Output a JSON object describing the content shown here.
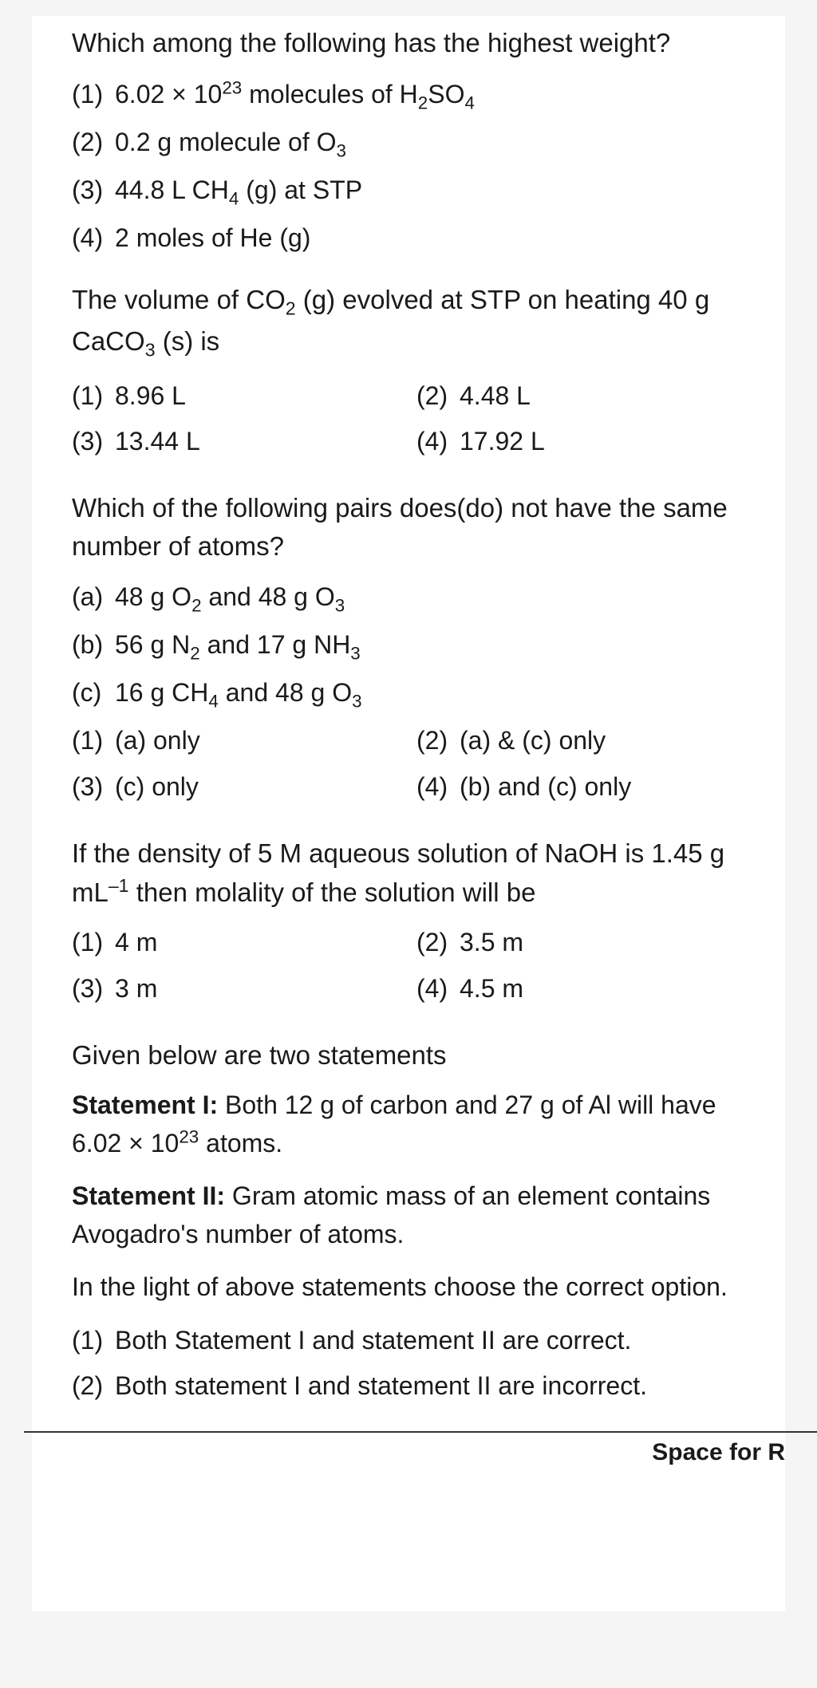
{
  "questions": [
    {
      "text": "Which among the following has the highest weight?",
      "layout": "single",
      "options": [
        {
          "num": "(1)",
          "html": "6.02 × 10<sup>23</sup> molecules of H<sub>2</sub>SO<sub>4</sub>"
        },
        {
          "num": "(2)",
          "html": "0.2 g molecule of O<sub>3</sub>"
        },
        {
          "num": "(3)",
          "html": "44.8 L CH<sub>4</sub> (g) at STP"
        },
        {
          "num": "(4)",
          "html": "2 moles of He (g)"
        }
      ]
    },
    {
      "text_html": "The volume of CO<sub>2</sub> (g) evolved at STP on heating 40 g CaCO<sub>3</sub> (s) is",
      "layout": "two",
      "options": [
        {
          "num": "(1)",
          "html": "8.96 L"
        },
        {
          "num": "(2)",
          "html": "4.48 L"
        },
        {
          "num": "(3)",
          "html": "13.44 L"
        },
        {
          "num": "(4)",
          "html": "17.92 L"
        }
      ]
    },
    {
      "text": "Which of the following pairs does(do) not have the same number of atoms?",
      "sub_options": [
        {
          "letter": "(a)",
          "html": "48 g O<sub>2</sub> and 48 g O<sub>3</sub>"
        },
        {
          "letter": "(b)",
          "html": "56 g N<sub>2</sub> and 17 g NH<sub>3</sub>"
        },
        {
          "letter": "(c)",
          "html": "16 g CH<sub>4</sub> and 48 g O<sub>3</sub>"
        }
      ],
      "layout": "two",
      "options": [
        {
          "num": "(1)",
          "html": "(a) only"
        },
        {
          "num": "(2)",
          "html": "(a) & (c) only"
        },
        {
          "num": "(3)",
          "html": "(c) only"
        },
        {
          "num": "(4)",
          "html": "(b) and (c) only"
        }
      ]
    },
    {
      "text_html": "If the density of 5 M aqueous solution of NaOH is 1.45 g mL<sup>–1</sup> then molality of the solution will be",
      "layout": "two",
      "options": [
        {
          "num": "(1)",
          "html": "4 m"
        },
        {
          "num": "(2)",
          "html": "3.5 m"
        },
        {
          "num": "(3)",
          "html": "3 m"
        },
        {
          "num": "(4)",
          "html": "4.5 m"
        }
      ]
    },
    {
      "text": "Given below are two statements",
      "statements": [
        {
          "label": "Statement I:",
          "html": "Both 12 g of carbon and 27 g of Al will have 6.02 × 10<sup>23</sup> atoms."
        },
        {
          "label": "Statement II:",
          "html": "Gram atomic mass of an element contains Avogadro's number of atoms."
        }
      ],
      "followup": "In the light of above statements choose the correct option.",
      "layout": "single",
      "options": [
        {
          "num": "(1)",
          "html": "Both Statement I and statement II are correct."
        },
        {
          "num": "(2)",
          "html": "Both statement I and statement II are incorrect."
        }
      ]
    }
  ],
  "footer": "Space for R",
  "colors": {
    "text": "#1a1a1a",
    "background": "#ffffff",
    "divider": "#333333"
  }
}
